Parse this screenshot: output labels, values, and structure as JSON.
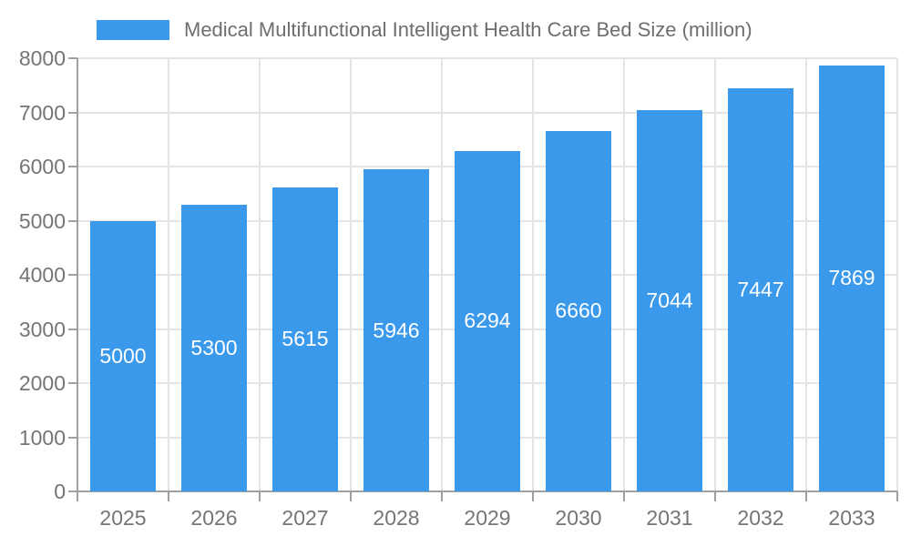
{
  "chart_data": {
    "type": "bar",
    "title": "",
    "legend_position": "top",
    "categories": [
      "2025",
      "2026",
      "2027",
      "2028",
      "2029",
      "2030",
      "2031",
      "2032",
      "2033"
    ],
    "series": [
      {
        "name": "Medical Multifunctional Intelligent Health Care Bed Size (million)",
        "values": [
          5000,
          5300,
          5615,
          5946,
          6294,
          6660,
          7044,
          7447,
          7869
        ],
        "color": "#3B99EC"
      }
    ],
    "value_labels_position": "inside-center",
    "value_label_color": "#ffffff",
    "xlabel": "",
    "ylabel": "",
    "ylim": [
      0,
      8000
    ],
    "ytick_interval": 1000,
    "yticks": [
      0,
      1000,
      2000,
      3000,
      4000,
      5000,
      6000,
      7000,
      8000
    ],
    "grid": true,
    "background_color": "#ffffff",
    "grid_color": "#e4e4e4",
    "axis_line_color": "#a0a0a0",
    "axis_text_color": "#757575",
    "legend_text_color": "#6e6e6e"
  }
}
